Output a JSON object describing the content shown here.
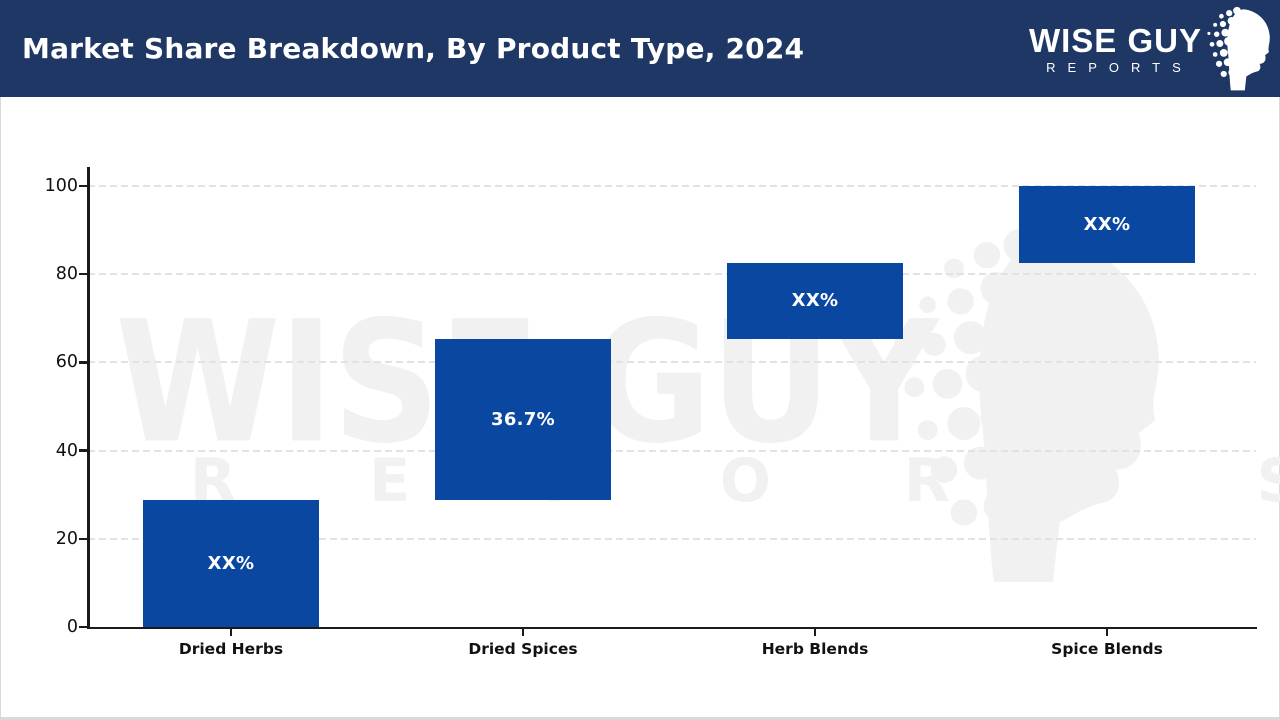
{
  "header": {
    "title": "Market Share Breakdown, By Product Type, 2024",
    "logo": {
      "line1": "WISE GUY",
      "line2": "REPORTS"
    }
  },
  "watermark": {
    "line1": "WISE GUY",
    "line2": "R E P O R T S"
  },
  "colors": {
    "header_bg": "#1e3765",
    "bar_fill": "#0a47a1",
    "bar_label": "#ffffff",
    "axis": "#1a1a1a",
    "tick_label": "#111111",
    "gridline": "#e2e2e2",
    "watermark": "#f1f1f1",
    "title_text": "#ffffff"
  },
  "chart_data": {
    "type": "bar",
    "subtype": "floating-waterfall",
    "title": "Market Share Breakdown, By Product Type, 2024",
    "categories": [
      "Dried Herbs",
      "Dried Spices",
      "Herb Blends",
      "Spice Blends"
    ],
    "series": [
      {
        "name": "Market share (%)",
        "segments": [
          {
            "category": "Dried Herbs",
            "start": 0,
            "end": 28.7,
            "label": "XX%"
          },
          {
            "category": "Dried Spices",
            "start": 28.7,
            "end": 65.4,
            "label": "36.7%"
          },
          {
            "category": "Herb Blends",
            "start": 65.4,
            "end": 82.5,
            "label": "XX%"
          },
          {
            "category": "Spice Blends",
            "start": 82.5,
            "end": 100,
            "label": "XX%"
          }
        ]
      }
    ],
    "xlabel": "",
    "ylabel": "",
    "ylim": [
      0,
      100
    ],
    "yticks": [
      0,
      20,
      40,
      60,
      80,
      100
    ],
    "grid": "horizontal-dashed",
    "legend": "none",
    "bar_color": "#0a47a1"
  }
}
